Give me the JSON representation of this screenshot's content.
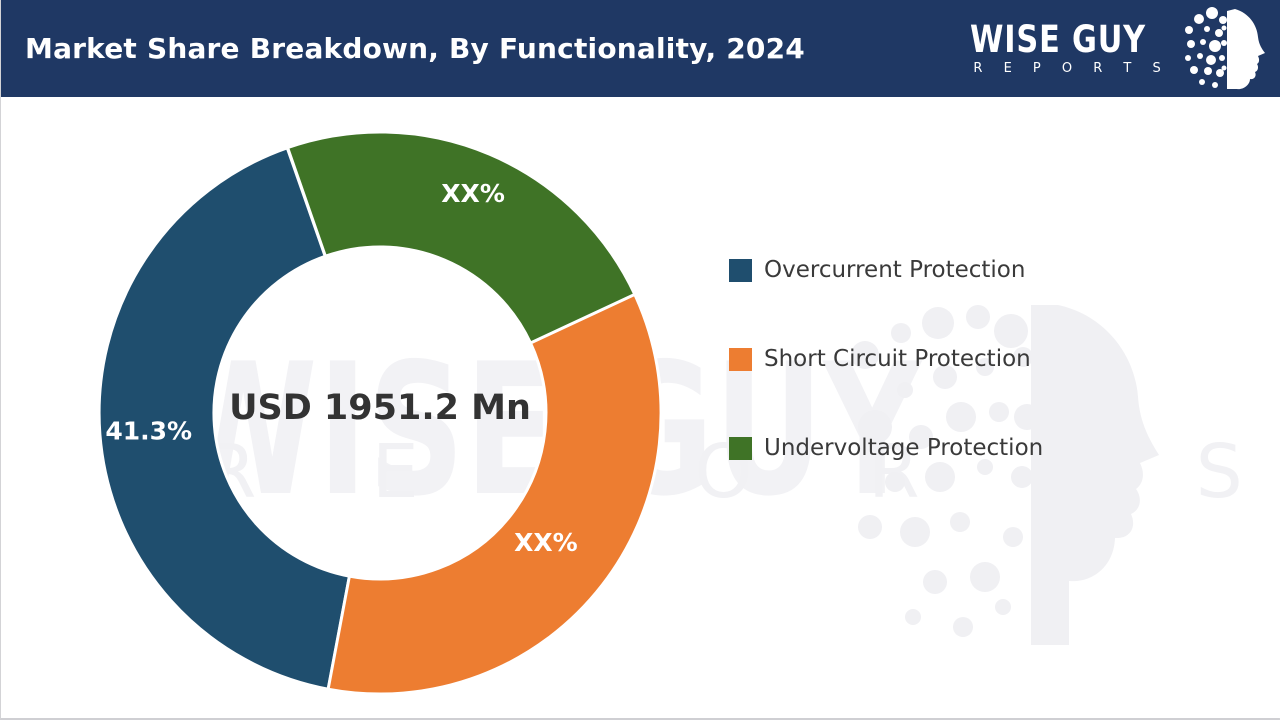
{
  "header": {
    "title": "Market Share Breakdown, By Functionality, 2024",
    "logo": {
      "line1": "WISE GUY",
      "line2": "R E P O R T S",
      "icon": "dotted-head-profile-icon"
    }
  },
  "watermark": {
    "line1": "WISE GUY",
    "line2": "R E P O R T S",
    "icon": "dotted-head-profile-watermark-icon"
  },
  "chart_data": {
    "type": "donut",
    "title": "Market Share Breakdown, By Functionality, 2024",
    "center_label": "USD 1951.2 Mn",
    "legend_position": "right",
    "labels_on_slices": true,
    "segments": [
      {
        "name": "Overcurrent Protection",
        "display_label": "41.3%",
        "approx_pct_from_arc": 41.7,
        "start_angle_deg": 190.6,
        "color": "#1F4E6E"
      },
      {
        "name": "Short Circuit Protection",
        "display_label": "XX%",
        "approx_pct_from_arc": 34.9,
        "start_angle_deg": 65.0,
        "color": "#ED7D31"
      },
      {
        "name": "Undervoltage Protection",
        "display_label": "XX%",
        "approx_pct_from_arc": 23.4,
        "start_angle_deg": 340.8,
        "color": "#3F7326"
      }
    ]
  },
  "colors": {
    "header_bg": "#1F3864",
    "title_text": "#FFFFFF",
    "center_text": "#333333",
    "legend_text": "#3A3A3A",
    "slice_label_text": "#FFFFFF",
    "watermark": "#F1F1F4"
  }
}
